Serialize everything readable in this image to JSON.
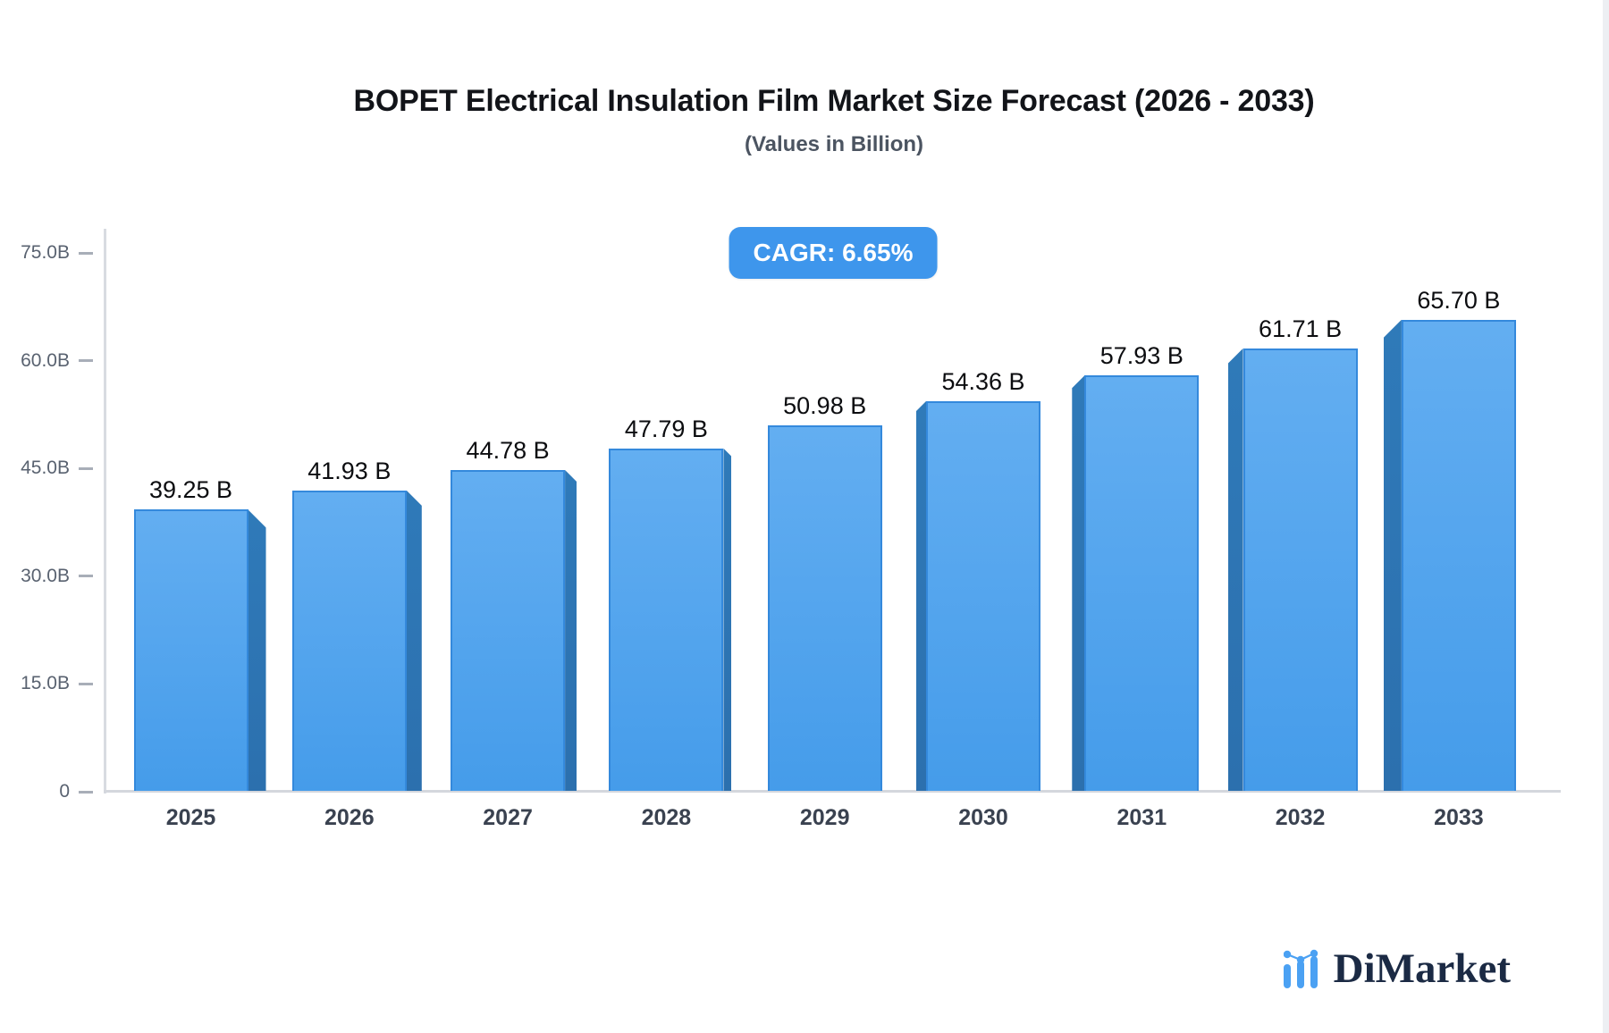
{
  "header": {
    "title": "BOPET Electrical Insulation Film Market Size Forecast (2026 - 2033)",
    "subtitle": "(Values in Billion)",
    "cagr_badge": "CAGR: 6.65%"
  },
  "chart_data": {
    "type": "bar",
    "title": "BOPET Electrical Insulation Film Market Size Forecast (2026 - 2033)",
    "subtitle": "(Values in Billion)",
    "categories": [
      "2025",
      "2026",
      "2027",
      "2028",
      "2029",
      "2030",
      "2031",
      "2032",
      "2033"
    ],
    "values": [
      39.25,
      41.93,
      44.78,
      47.79,
      50.98,
      54.36,
      57.93,
      61.71,
      65.7
    ],
    "value_labels": [
      "39.25 B",
      "41.93 B",
      "44.78 B",
      "47.79 B",
      "50.98 B",
      "54.36 B",
      "57.93 B",
      "61.71 B",
      "65.70 B"
    ],
    "cagr": "6.65%",
    "xlabel": "",
    "ylabel": "",
    "ylim": [
      0,
      75
    ],
    "ytick_values": [
      75,
      60,
      45,
      30,
      15,
      0
    ],
    "ytick_labels": [
      "75.0B",
      "60.0B",
      "45.0B",
      "30.0B",
      "15.0B",
      "0"
    ],
    "grid": false,
    "legend": false,
    "colors": {
      "bar_face_top": "#63aef1",
      "bar_face_bottom": "#459cea",
      "bar_border": "#3489dc",
      "bar_side": "#2d74b2",
      "badge_blue": "#3e96ec",
      "axis_gray": "#d8dbe1",
      "tick_text": "#596270"
    }
  },
  "footer": {
    "brand": "DiMarket",
    "logo_colors": {
      "icon_blue": "#4ba1f3",
      "text_navy": "#1b2a44"
    }
  }
}
